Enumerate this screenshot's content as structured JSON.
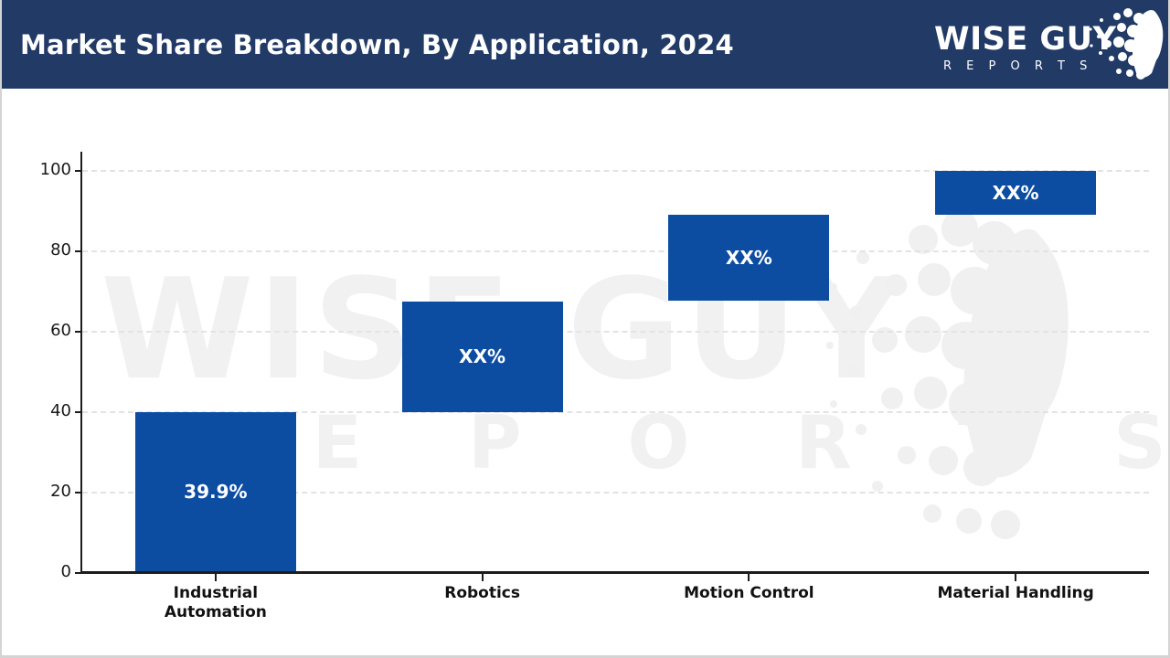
{
  "header": {
    "title": "Market Share Breakdown, By Application, 2024",
    "background_color": "#213A66",
    "logo": {
      "line1": "WISE GUY",
      "line2": "R E P O R T S"
    }
  },
  "watermark": {
    "line1": "WISE GUY",
    "line2": "R E P O R T S"
  },
  "chart_data": {
    "type": "bar",
    "subtype": "waterfall",
    "title": "Market Share Breakdown, By Application, 2024",
    "categories": [
      "Industrial Automation",
      "Robotics",
      "Motion Control",
      "Material Handling"
    ],
    "series": [
      {
        "name": "Market Share",
        "segments": [
          {
            "category": "Industrial Automation",
            "start": 0,
            "end": 39.9,
            "label": "39.9%"
          },
          {
            "category": "Robotics",
            "start": 39.9,
            "end": 67.5,
            "label": "XX%"
          },
          {
            "category": "Motion Control",
            "start": 67.5,
            "end": 89,
            "label": "XX%"
          },
          {
            "category": "Material Handling",
            "start": 89,
            "end": 100,
            "label": "XX%"
          }
        ]
      }
    ],
    "xlabel": "",
    "ylabel": "",
    "ylim": [
      0,
      105
    ],
    "y_ticks": [
      0,
      20,
      40,
      60,
      80,
      100
    ],
    "grid": "horizontal-dashed",
    "legend": "none",
    "bar_color": "#0C4DA2",
    "bar_label_color": "#ffffff",
    "axis_color": "#1c1c1c"
  }
}
